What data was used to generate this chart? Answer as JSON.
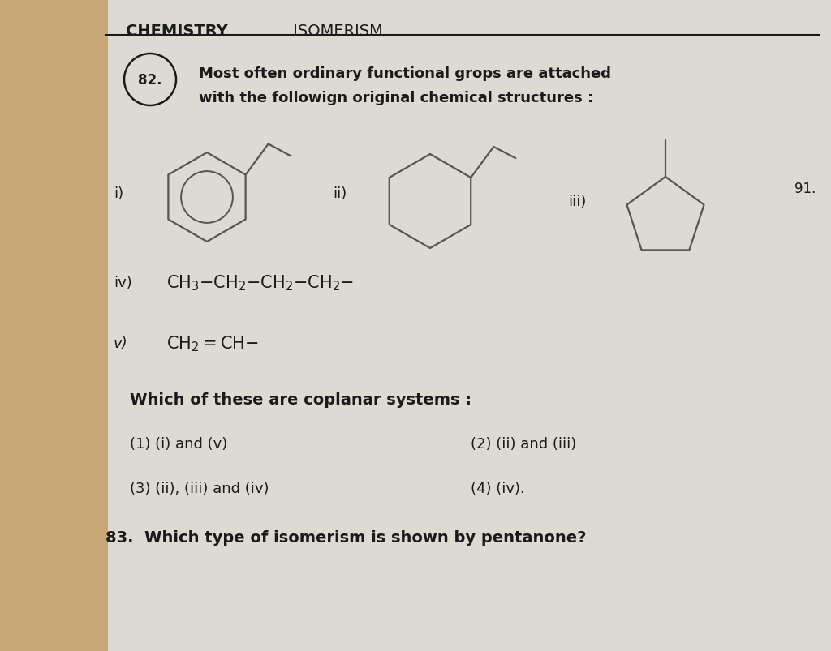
{
  "bg_left": "#c8a878",
  "bg_page": "#dddad4",
  "title_bold": "CHEMISTRY",
  "title_normal": " ISOMERISM",
  "q82_text_line1": "Most often ordinary functional grops are attached",
  "q82_text_line2": "with the followign original chemical structures :",
  "q91_number": "91.",
  "label_i": "i)",
  "label_ii": "ii)",
  "label_iii": "iii)",
  "label_iv": "iv)",
  "label_v": "v)",
  "question_text": "Which of these are coplanar systems :",
  "opt1": "(1) (i) and (v)",
  "opt2": "(2) (ii) and (iii)",
  "opt3": "(3) (ii), (iii) and (iv)",
  "opt4": "(4) (iv).",
  "q83_text": "83.  Which type of isomerism is shown by pentanone?",
  "text_color": "#1a1a1a",
  "structure_color": "#555555",
  "lw": 1.6
}
